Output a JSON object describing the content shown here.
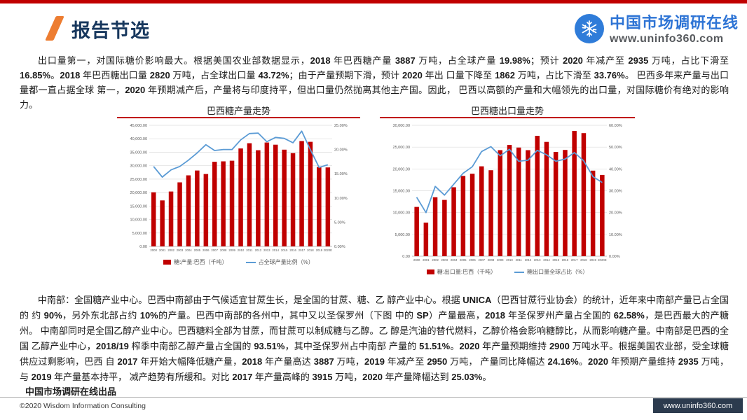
{
  "header": {
    "title": "报告节选"
  },
  "logo": {
    "brand": "中国市场调研在线",
    "url": "www.uninfo360.com"
  },
  "footer": {
    "producer": "中国市场调研在线出品",
    "copyright": "©2020 Wisdom Information Consulting",
    "site": "www.uninfo360.com"
  },
  "colors": {
    "accent_red": "#c00000",
    "accent_orange": "#ed7d31",
    "title_navy": "#17375d",
    "line_blue": "#5b9bd5"
  },
  "paragraphs": {
    "p1": [
      {
        "t": "出口量第一，对国际糖价影响最大。根据美国农业部数据显示，"
      },
      {
        "t": "2018",
        "b": true
      },
      {
        "t": " 年巴西糖产量 "
      },
      {
        "t": "3887",
        "b": true
      },
      {
        "t": " 万吨，占全球产量 "
      },
      {
        "t": "19.98%",
        "b": true
      },
      {
        "t": "；预计 "
      },
      {
        "t": "2020",
        "b": true
      },
      {
        "t": " 年减产至 "
      },
      {
        "t": "2935",
        "b": true
      },
      {
        "t": " 万吨，占比下滑至 "
      },
      {
        "t": "16.85%",
        "b": true
      },
      {
        "t": "。"
      },
      {
        "t": "2018",
        "b": true
      },
      {
        "t": " 年巴西糖出口量 "
      },
      {
        "t": "2820",
        "b": true
      },
      {
        "t": " 万吨，占全球出口量 "
      },
      {
        "t": "43.72%",
        "b": true
      },
      {
        "t": "；由于产量预期下滑，预计 "
      },
      {
        "t": "2020",
        "b": true
      },
      {
        "t": " 年出 口量下降至 "
      },
      {
        "t": "1862",
        "b": true
      },
      {
        "t": " 万吨，占比下滑至 "
      },
      {
        "t": "33.76%",
        "b": true
      },
      {
        "t": "。 巴西多年来产量与出口量都一直占据全球 第一，"
      },
      {
        "t": "2020",
        "b": true
      },
      {
        "t": " 年预期减产后，产量将与印度持平，但出口量仍然抛离其他主产国。因此， 巴西以高额的产量和大幅领先的出口量，对国际糖价有绝对的影响力。"
      }
    ],
    "p2": [
      {
        "t": "中南部：全国糖产业中心。巴西中南部由于气候适宜甘蔗生长，是全国的甘蔗、糖、乙 醇产业中心。根据 "
      },
      {
        "t": "UNICA",
        "b": true
      },
      {
        "t": "（巴西甘蔗行业协会）的统计，近年来中南部产量已占全国的 约 "
      },
      {
        "t": "90%",
        "b": true
      },
      {
        "t": "，另外东北部占约 "
      },
      {
        "t": "10%",
        "b": true
      },
      {
        "t": "的产量。巴西中南部的各州中，其中又以圣保罗州（下图 中的 "
      },
      {
        "t": "SP",
        "b": true
      },
      {
        "t": "）产量最高，"
      },
      {
        "t": "2018",
        "b": true
      },
      {
        "t": " 年圣保罗州产量占全国的 "
      },
      {
        "t": "62.58%",
        "b": true
      },
      {
        "t": "，是巴西最大的产糖州。 中南部同时是全国乙醇产业中心。巴西糖料全部为甘蔗，而甘蔗可以制成糖与乙醇。乙 醇是汽油的替代燃料，乙醇价格会影响糖醇比，从而影响糖产量。中南部是巴西的全国 乙醇产业中心，"
      },
      {
        "t": "2018/19",
        "b": true
      },
      {
        "t": " 榨季中南部乙醇产量占全国的 "
      },
      {
        "t": "93.51%",
        "b": true
      },
      {
        "t": "，其中圣保罗州占中南部 产量的 "
      },
      {
        "t": "51.51%",
        "b": true
      },
      {
        "t": "。"
      },
      {
        "t": "2020",
        "b": true
      },
      {
        "t": " 年产量预期维持 "
      },
      {
        "t": "2900",
        "b": true
      },
      {
        "t": " 万吨水平。根据美国农业部，受全球糖供应过剩影响，巴西 自 "
      },
      {
        "t": "2017",
        "b": true
      },
      {
        "t": " 年开始大幅降低糖产量，"
      },
      {
        "t": "2018",
        "b": true
      },
      {
        "t": " 年产量高达 "
      },
      {
        "t": "3887",
        "b": true
      },
      {
        "t": " 万吨，"
      },
      {
        "t": "2019",
        "b": true
      },
      {
        "t": " 年减产至 "
      },
      {
        "t": "2950",
        "b": true
      },
      {
        "t": " 万吨， 产量同比降幅达 "
      },
      {
        "t": "24.16%",
        "b": true
      },
      {
        "t": "。"
      },
      {
        "t": "2020",
        "b": true
      },
      {
        "t": " 年预期产量维持 "
      },
      {
        "t": "2935",
        "b": true
      },
      {
        "t": " 万吨，与 "
      },
      {
        "t": "2019",
        "b": true
      },
      {
        "t": " 年产量基本持平， 减产趋势有所缓和。对比 "
      },
      {
        "t": "2017",
        "b": true
      },
      {
        "t": " 年产量高峰的 "
      },
      {
        "t": "3915",
        "b": true
      },
      {
        "t": " 万吨，"
      },
      {
        "t": "2020",
        "b": true
      },
      {
        "t": " 年产量降幅达到 "
      },
      {
        "t": "25.03%",
        "b": true
      },
      {
        "t": "。"
      }
    ]
  },
  "chart_data": [
    {
      "type": "bar",
      "title": "巴西糖产量走势",
      "categories": [
        "2000",
        "2001",
        "2002",
        "2003",
        "2004",
        "2005",
        "2006",
        "2007",
        "2008",
        "2009",
        "2010",
        "2011",
        "2012",
        "2013",
        "2014",
        "2015",
        "2016",
        "2017",
        "2018",
        "2019",
        "2020E"
      ],
      "series": [
        {
          "name": "糖:产量:巴西（千吨）",
          "type": "bar",
          "axis": "left",
          "color": "#c00000",
          "values": [
            20100,
            17100,
            20400,
            23800,
            26400,
            28200,
            26900,
            31450,
            31600,
            31850,
            36400,
            38350,
            35750,
            38600,
            37800,
            35950,
            34650,
            39150,
            38870,
            29500,
            29350
          ]
        },
        {
          "name": "占全球产量比例（%）",
          "type": "line",
          "axis": "right",
          "color": "#5b9bd5",
          "values": [
            16.5,
            14.3,
            15.8,
            16.5,
            17.8,
            19.3,
            21.0,
            19.8,
            20.0,
            20.0,
            22.0,
            23.3,
            23.4,
            21.6,
            22.5,
            22.3,
            21.4,
            23.8,
            19.98,
            16.3,
            16.85
          ]
        }
      ],
      "axes": {
        "left": {
          "min": 0,
          "max": 45000,
          "step": 5000,
          "format": "#,##0.00"
        },
        "right": {
          "min": 0,
          "max": 25,
          "step": 5,
          "format": "0.00%"
        }
      },
      "grid": true,
      "legend_position": "bottom"
    },
    {
      "type": "bar",
      "title": "巴西糖出口量走势",
      "categories": [
        "2000",
        "2001",
        "2002",
        "2003",
        "2004",
        "2005",
        "2006",
        "2007",
        "2008",
        "2009",
        "2010",
        "2011",
        "2012",
        "2013",
        "2014",
        "2015",
        "2016",
        "2017",
        "2018",
        "2019",
        "2020E"
      ],
      "series": [
        {
          "name": "糖:出口量:巴西（千吨）",
          "type": "bar",
          "axis": "left",
          "color": "#c00000",
          "values": [
            11300,
            7700,
            13500,
            12900,
            15800,
            18400,
            18900,
            20600,
            19700,
            24300,
            25500,
            24900,
            24300,
            27600,
            26200,
            23900,
            24350,
            28700,
            28200,
            19600,
            18620
          ]
        },
        {
          "name": "糖出口量全球占比（%）",
          "type": "line",
          "axis": "right",
          "color": "#5b9bd5",
          "values": [
            27,
            20,
            32,
            28,
            33,
            38,
            41,
            48,
            50.2,
            46,
            49,
            43.5,
            44,
            48.5,
            46.5,
            43.5,
            44.5,
            47.5,
            43.72,
            36.5,
            33.76
          ]
        }
      ],
      "axes": {
        "left": {
          "min": 0,
          "max": 30000,
          "step": 5000,
          "format": "#,##0.00"
        },
        "right": {
          "min": 0,
          "max": 60,
          "step": 10,
          "format": "0.00%"
        }
      },
      "grid": true,
      "legend_position": "bottom"
    }
  ]
}
